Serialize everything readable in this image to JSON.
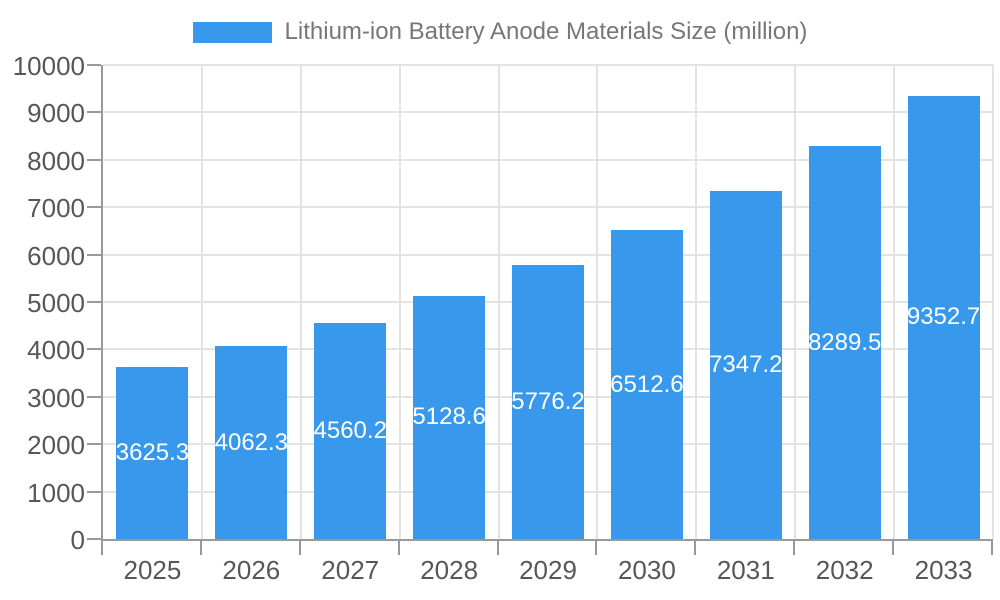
{
  "chart_data": {
    "type": "bar",
    "title": "Lithium-ion Battery Anode Materials Size (million)",
    "series_name": "Lithium-ion Battery Anode Materials Size (million)",
    "categories": [
      "2025",
      "2026",
      "2027",
      "2028",
      "2029",
      "2030",
      "2031",
      "2032",
      "2033"
    ],
    "values": [
      3625.3,
      4062.3,
      4560.2,
      5128.6,
      5776.2,
      6512.6,
      7347.2,
      8289.5,
      9352.7
    ],
    "value_labels": [
      "3625.3",
      "4062.3",
      "4560.2",
      "5128.6",
      "5776.2",
      "6512.6",
      "7347.2",
      "8289.5",
      "9352.7"
    ],
    "xlabel": "",
    "ylabel": "",
    "ylim": [
      0,
      10000
    ],
    "ytick_step": 1000,
    "ytick_labels": [
      "0",
      "1000",
      "2000",
      "3000",
      "4000",
      "5000",
      "6000",
      "7000",
      "8000",
      "9000",
      "10000"
    ],
    "grid": "both",
    "legend_position": "top",
    "bar_color": "#3899ec",
    "value_label_color": "#ffffff",
    "axis_color": "#999999",
    "grid_color": "#e3e3e3",
    "tick_label_color": "#56575a",
    "legend_text_color": "#777779",
    "background_color": "#ffffff"
  }
}
